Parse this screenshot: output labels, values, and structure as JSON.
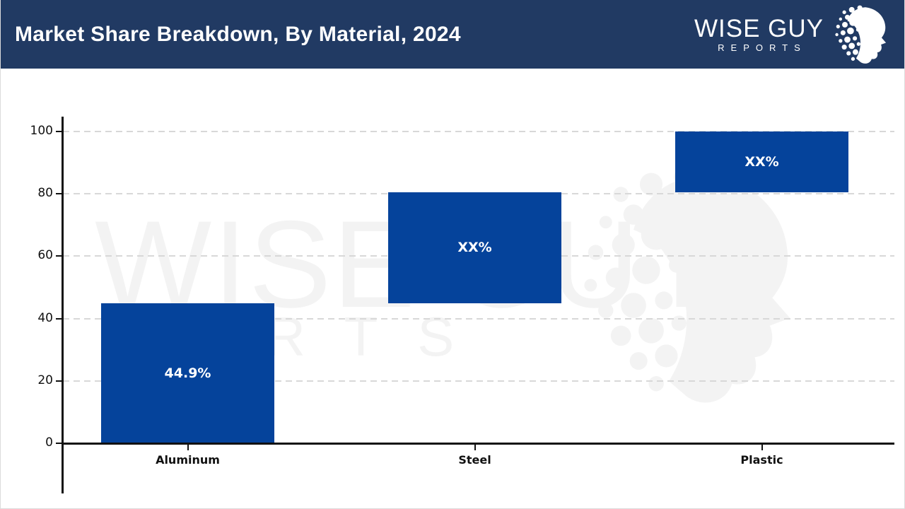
{
  "header": {
    "title": "Market Share Breakdown, By Material, 2024",
    "logo": {
      "line1": "WISE GUY",
      "line2": "REPORTS"
    }
  },
  "watermark": {
    "line1": "WISE GUY",
    "line2": "PORTS"
  },
  "chart_data": {
    "type": "bar",
    "subtype": "waterfall",
    "title": "Market Share Breakdown, By Material, 2024",
    "categories": [
      "Aluminum",
      "Steel",
      "Plastic"
    ],
    "segments": [
      {
        "category": "Aluminum",
        "start": 0,
        "end": 44.9,
        "label": "44.9%"
      },
      {
        "category": "Steel",
        "start": 44.9,
        "end": 80.6,
        "label": "XX%"
      },
      {
        "category": "Plastic",
        "start": 80.6,
        "end": 100,
        "label": "XX%"
      }
    ],
    "ylim": [
      0,
      100
    ],
    "yticks": [
      0,
      20,
      40,
      60,
      80,
      100
    ],
    "grid": {
      "horizontal": true,
      "style": "dashed",
      "color": "#d8d8d8"
    },
    "legend": null,
    "colors": {
      "bar": "#05439B",
      "bar_label": "#ffffff",
      "axis": "#111111",
      "header_bg": "#213A63",
      "watermark": "#f3f3f3"
    }
  }
}
